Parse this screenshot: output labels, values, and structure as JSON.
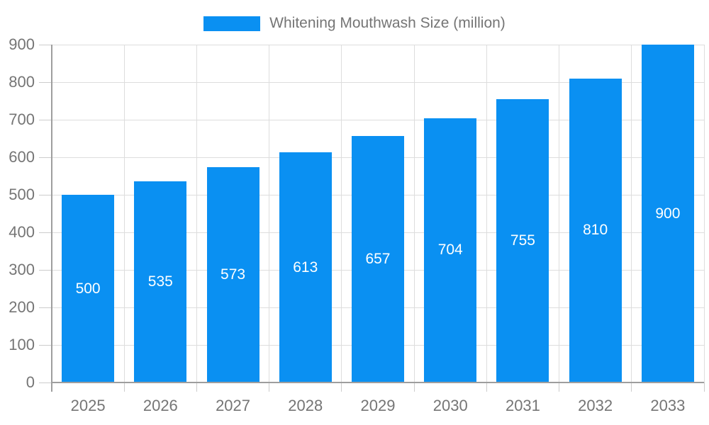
{
  "chart_data": {
    "type": "bar",
    "title": "Whitening Mouthwash Size (million)",
    "categories": [
      "2025",
      "2026",
      "2027",
      "2028",
      "2029",
      "2030",
      "2031",
      "2032",
      "2033"
    ],
    "values": [
      500,
      535,
      573,
      613,
      657,
      704,
      755,
      810,
      900
    ],
    "xlabel": "",
    "ylabel": "",
    "ylim": [
      0,
      900
    ],
    "ytick_step": 100,
    "grid": true,
    "legend_position": "top-center",
    "value_labels": "inside-bar-centered",
    "colors": {
      "bar": "#0a90f2",
      "grid_line": "#dddddd",
      "axis_line": "#9e9e9e",
      "tick": "#cccccc",
      "axis_label": "#757575",
      "value_label": "#ffffff",
      "background": "#ffffff"
    }
  }
}
